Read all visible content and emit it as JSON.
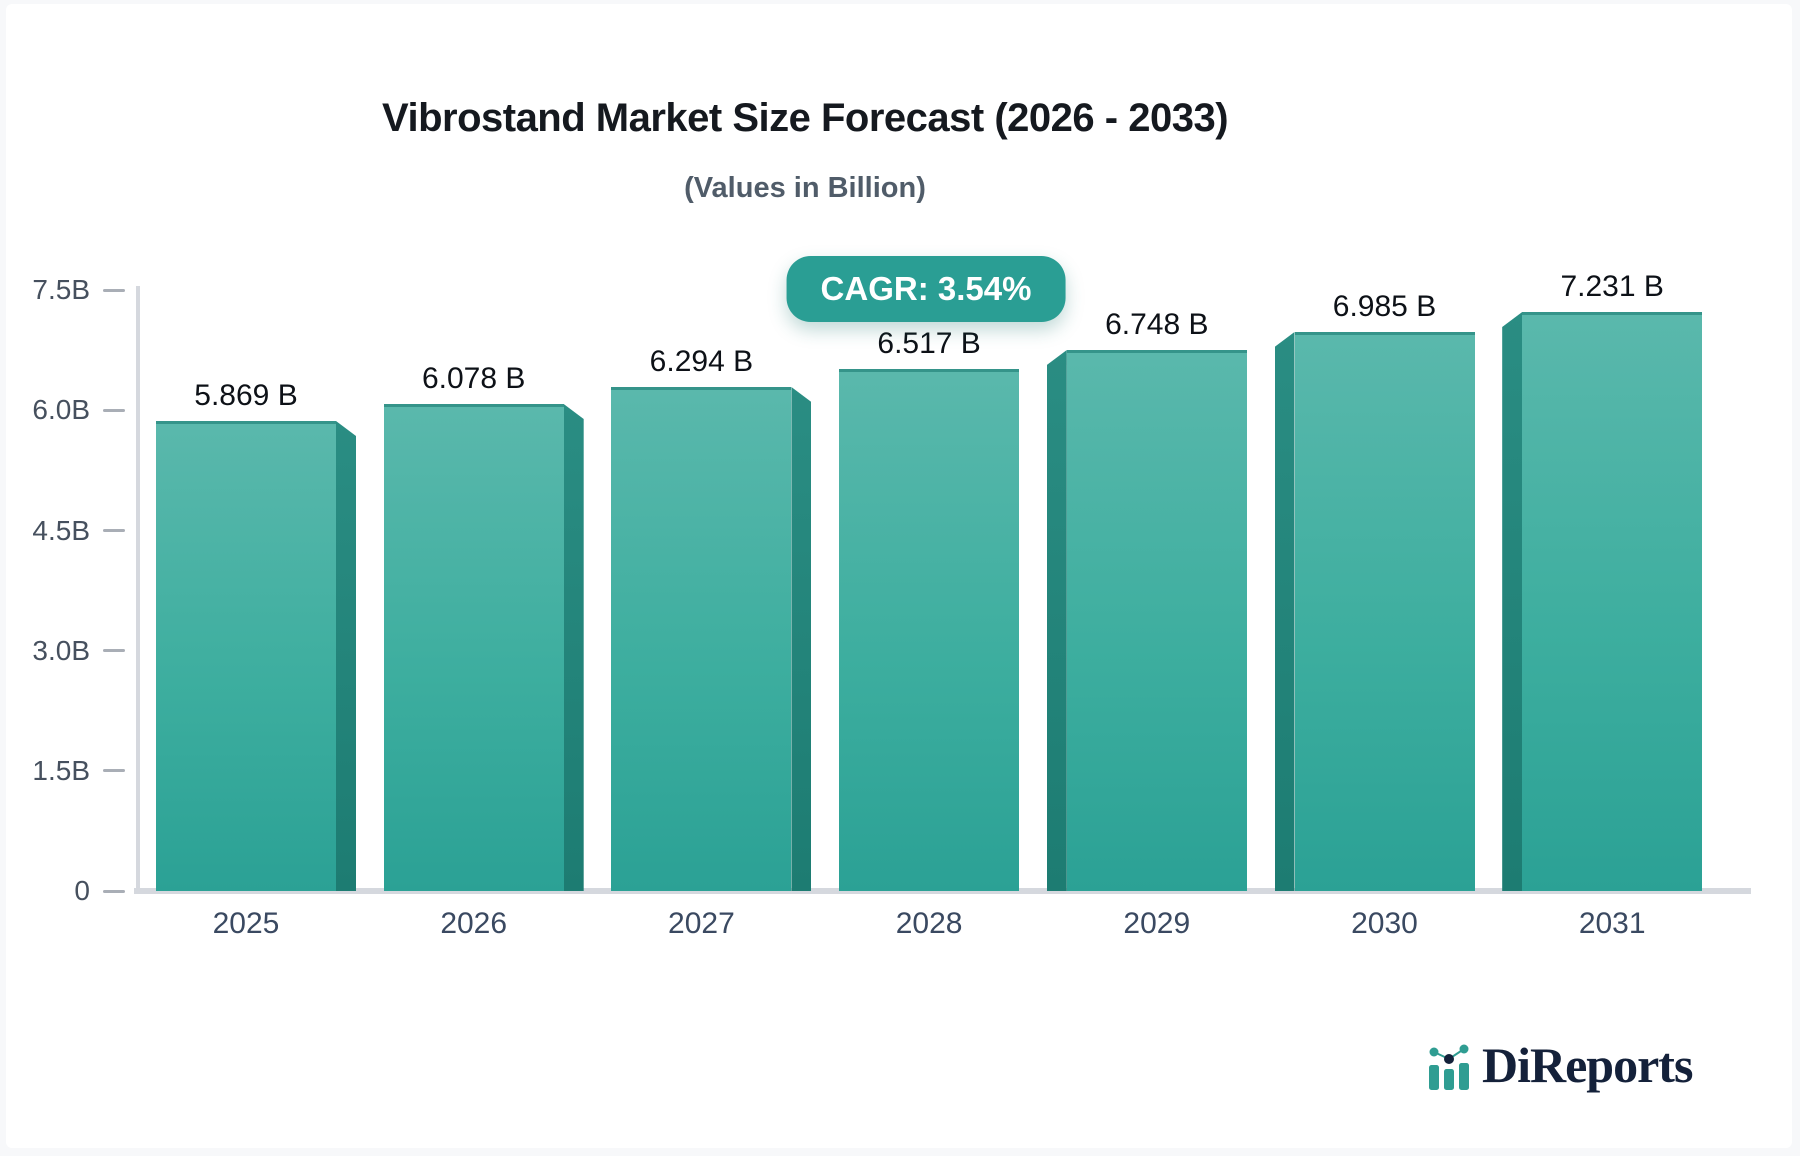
{
  "page": {
    "background": "#f7f8fa",
    "card_background": "#ffffff"
  },
  "chart_data": {
    "type": "bar",
    "title": "Vibrostand Market Size Forecast (2026 - 2033)",
    "subtitle": "(Values in Billion)",
    "cagr_label": "CAGR: 3.54%",
    "unit": "Billion",
    "categories": [
      "2025",
      "2026",
      "2027",
      "2028",
      "2029",
      "2030",
      "2031"
    ],
    "values": [
      5.869,
      6.078,
      6.294,
      6.517,
      6.748,
      6.985,
      7.231
    ],
    "bar_labels": [
      "5.869 B",
      "6.078 B",
      "6.294 B",
      "6.517 B",
      "6.748 B",
      "6.985 B",
      "7.231 B"
    ],
    "y_ticks": [
      {
        "label": "0",
        "value": 0
      },
      {
        "label": "1.5B",
        "value": 1.5
      },
      {
        "label": "3.0B",
        "value": 3.0
      },
      {
        "label": "4.5B",
        "value": 4.5
      },
      {
        "label": "6.0B",
        "value": 6.0
      },
      {
        "label": "7.5B",
        "value": 7.5
      }
    ],
    "ylim": [
      0,
      7.5
    ],
    "grid": "off",
    "legend": "none",
    "bar_style": "3d-perspective-center"
  },
  "branding": {
    "name": "DiReports",
    "logo_icon": "three-bars-with-dots-chart-icon"
  },
  "colors": {
    "bar_face_top": "#5ab8ac",
    "bar_face_mid": "#3dae9f",
    "bar_face_bottom": "#2ba195",
    "bar_top_edge": "#35948a",
    "bar_side_top": "#2a8d83",
    "bar_side_bottom": "#1d7c72",
    "badge_bg": "#2a9e94",
    "badge_text": "#ffffff",
    "axis_line": "#d5d8de",
    "tick_dash": "#a9aeb6",
    "title_color": "#15191f",
    "subtitle_color": "#505c69",
    "value_label_color": "#0d1117",
    "x_label_color": "#3a4961",
    "y_label_color": "#46505e",
    "logo_navy": "#14213a",
    "logo_teal": "#2f9d92"
  }
}
